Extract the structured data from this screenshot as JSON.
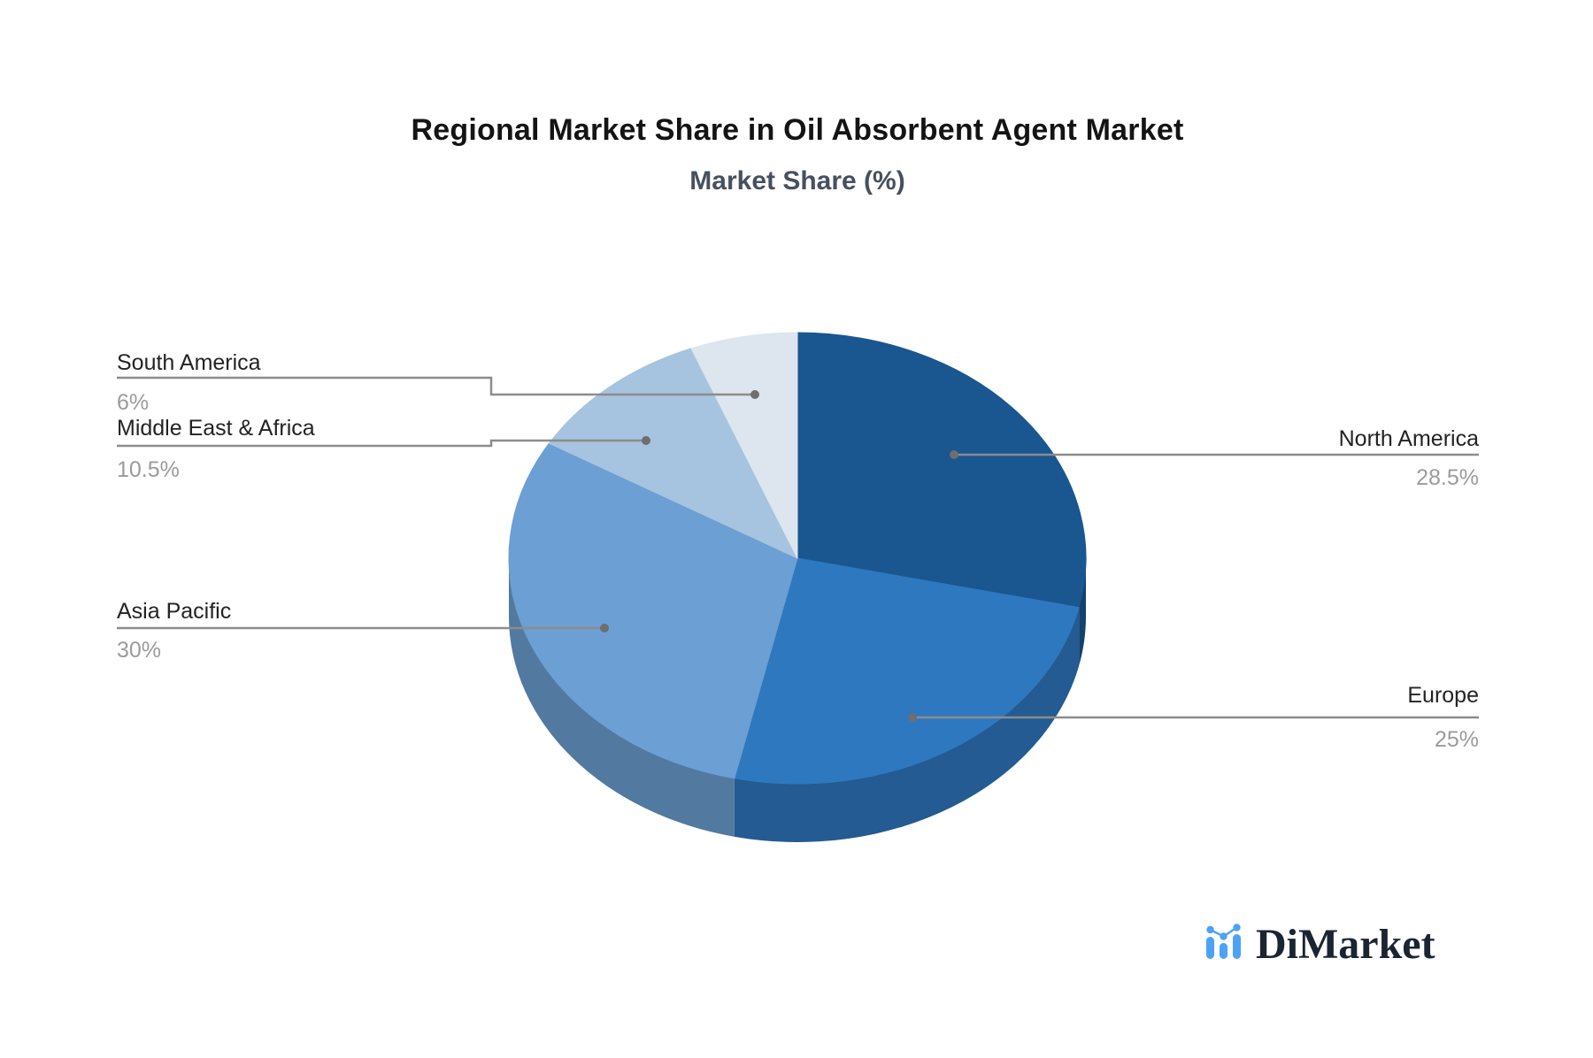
{
  "page": {
    "background": "#FFFFFF"
  },
  "title": "Regional Market Share in Oil Absorbent Agent Market",
  "subtitle": "Market Share (%)",
  "logo": {
    "text": "DiMarket",
    "icon": "bar-line-chart-icon",
    "icon_color": "#4CA2F6",
    "text_color": "#1B2433"
  },
  "style": {
    "leader_line_color": "#8C8C8C",
    "dot_color": "#6E6E6E",
    "label_color": "#232323",
    "value_color": "#9B9B9B",
    "title_color": "#141414",
    "subtitle_color": "#47505F"
  },
  "chart_data": {
    "type": "pie",
    "title": "Regional Market Share in Oil Absorbent Agent Market",
    "subtitle": "Market Share (%)",
    "unit": "%",
    "style_3d": true,
    "start_angle_deg": 0,
    "direction": "clockwise",
    "legend_position": "none",
    "slices": [
      {
        "label": "North America",
        "value": 28.5,
        "display": "28.5%",
        "color": "#1A568F",
        "label_side": "right"
      },
      {
        "label": "Europe",
        "value": 25,
        "display": "25%",
        "color": "#2E78C0",
        "label_side": "right"
      },
      {
        "label": "Asia Pacific",
        "value": 30,
        "display": "30%",
        "color": "#6C9FD3",
        "label_side": "left"
      },
      {
        "label": "Middle East & Africa",
        "value": 10.5,
        "display": "10.5%",
        "color": "#A6C3DF",
        "label_side": "left"
      },
      {
        "label": "South America",
        "value": 6,
        "display": "6%",
        "color": "#DDE5EF",
        "label_side": "left"
      }
    ]
  }
}
